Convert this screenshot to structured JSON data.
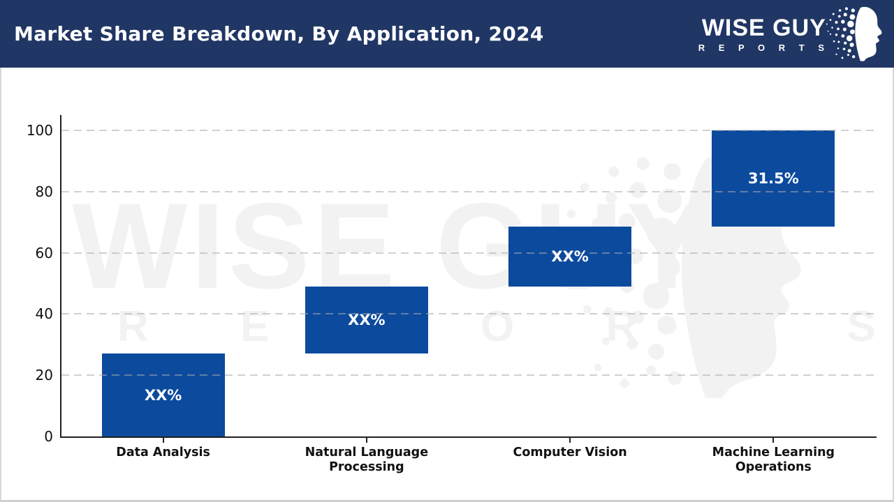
{
  "header": {
    "title": "Market Share Breakdown, By Application, 2024",
    "logo": {
      "name": "WISE GUY",
      "tagline": "R E P O R T S"
    }
  },
  "watermark": {
    "name": "WISE GUY",
    "tagline": "R E P O R T S"
  },
  "chart_data": {
    "type": "bar",
    "variant": "floating stacked-breakdown (waterfall-style market share bars)",
    "title": "Market Share Breakdown, By Application, 2024",
    "categories": [
      "Data Analysis",
      "Natural Language Processing",
      "Computer Vision",
      "Machine Learning Operations"
    ],
    "segments": [
      {
        "category": "Data Analysis",
        "start": 0,
        "end": 27,
        "label": "XX%"
      },
      {
        "category": "Natural Language Processing",
        "start": 27,
        "end": 49,
        "label": "XX%"
      },
      {
        "category": "Computer Vision",
        "start": 49,
        "end": 68.5,
        "label": "XX%"
      },
      {
        "category": "Machine Learning Operations",
        "start": 68.5,
        "end": 100,
        "label": "31.5%"
      }
    ],
    "ylim": [
      0,
      100
    ],
    "yticks": [
      0,
      20,
      40,
      60,
      80,
      100
    ],
    "xlabel": "",
    "ylabel": "",
    "grid": "horizontal dashed",
    "legend": "none",
    "bar_color": "#0c4a9e"
  },
  "colors": {
    "header_bg": "#203664",
    "bar_blue": "#0c4a9e",
    "watermark_gray": "#f2f2f2",
    "axis_dark": "#1f1f1f",
    "grid_gray": "#d9d9d9"
  }
}
